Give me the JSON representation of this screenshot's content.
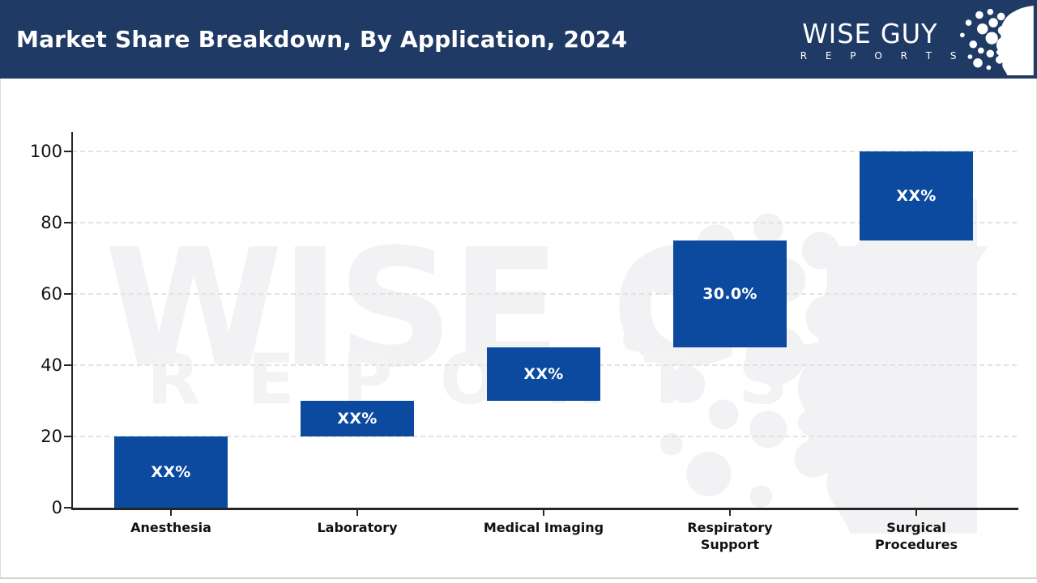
{
  "header": {
    "title": "Market Share Breakdown, By Application, 2024",
    "bg_color": "#203A66",
    "logo": {
      "line1": "WISE GUY",
      "line2": "R E P O R T S"
    }
  },
  "watermark": {
    "line1": "WISE GUY",
    "line2": "REPORTS"
  },
  "chart_data": {
    "type": "bar",
    "subtype": "waterfall",
    "title": "Market Share Breakdown, By Application, 2024",
    "categories": [
      "Anesthesia",
      "Laboratory",
      "Medical Imaging",
      "Respiratory Support",
      "Surgical Procedures"
    ],
    "bars": [
      {
        "category": "Anesthesia",
        "category_lines": [
          "Anesthesia"
        ],
        "start": 0,
        "end": 20,
        "label": "XX%"
      },
      {
        "category": "Laboratory",
        "category_lines": [
          "Laboratory"
        ],
        "start": 20,
        "end": 30,
        "label": "XX%"
      },
      {
        "category": "Medical Imaging",
        "category_lines": [
          "Medical Imaging"
        ],
        "start": 30,
        "end": 45,
        "label": "XX%"
      },
      {
        "category": "Respiratory Support",
        "category_lines": [
          "Respiratory",
          "Support"
        ],
        "start": 45,
        "end": 75,
        "label": "30.0%"
      },
      {
        "category": "Surgical Procedures",
        "category_lines": [
          "Surgical",
          "Procedures"
        ],
        "start": 75,
        "end": 100,
        "label": "XX%"
      }
    ],
    "ylim": [
      0,
      100
    ],
    "yticks": [
      0,
      20,
      40,
      60,
      80,
      100
    ],
    "bar_color": "#0B4A9E",
    "grid": "horizontal-dashed",
    "legend": "none",
    "xlabel": "",
    "ylabel": ""
  }
}
